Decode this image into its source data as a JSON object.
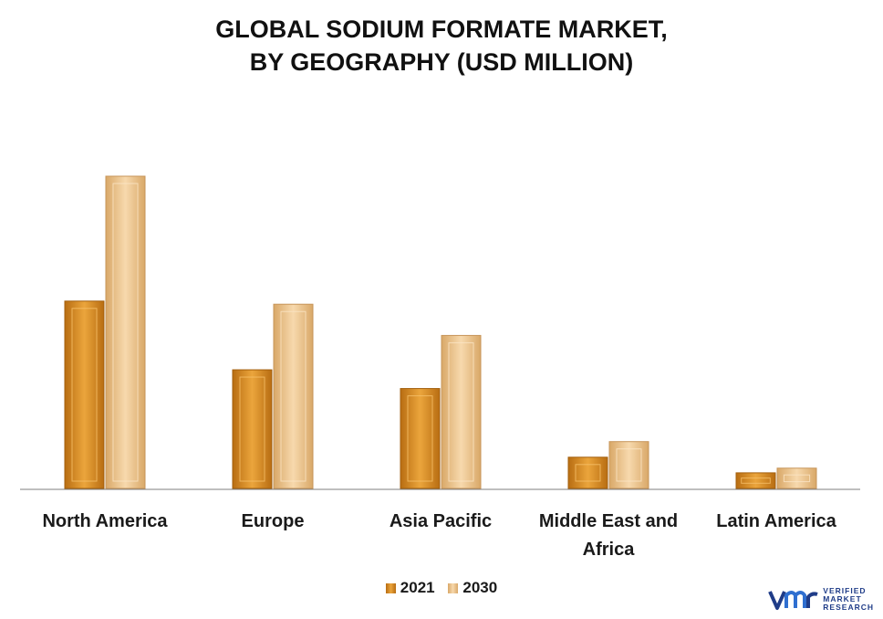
{
  "title_lines": [
    "GLOBAL SODIUM FORMATE MARKET,",
    "BY GEOGRAPHY (USD MILLION)"
  ],
  "colors": {
    "series_2021": "#e2982a",
    "series_2030": "#f2c994",
    "axis": "#7f7f7f"
  },
  "logo": {
    "lines": [
      "VERIFIED",
      "MARKET",
      "RESEARCH"
    ]
  },
  "chart_data": {
    "type": "bar",
    "title": "GLOBAL SODIUM FORMATE MARKET, BY GEOGRAPHY (USD MILLION)",
    "categories": [
      "North America",
      "Europe",
      "Asia Pacific",
      "Middle East and Africa",
      "Latin America"
    ],
    "category_label_lines": [
      [
        "North America"
      ],
      [
        "Europe"
      ],
      [
        "Asia Pacific"
      ],
      [
        "Middle East and",
        "Africa"
      ],
      [
        "Latin America"
      ]
    ],
    "series": [
      {
        "name": "2021",
        "values": [
          60,
          38,
          32,
          10,
          5
        ]
      },
      {
        "name": "2030",
        "values": [
          100,
          59,
          49,
          15,
          6.5
        ]
      }
    ],
    "ylim": [
      0,
      100
    ],
    "grid": false,
    "legend_position": "bottom"
  }
}
